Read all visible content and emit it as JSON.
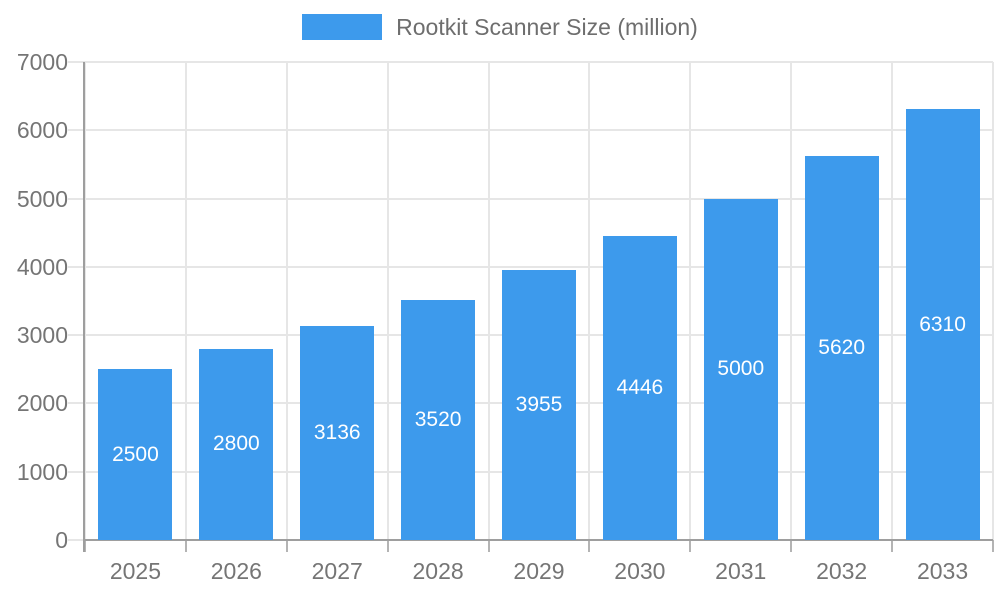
{
  "legend": {
    "label": "Rootkit Scanner Size (million)"
  },
  "chart_data": {
    "type": "bar",
    "title": "Rootkit Scanner Size (million)",
    "categories": [
      "2025",
      "2026",
      "2027",
      "2028",
      "2029",
      "2030",
      "2031",
      "2032",
      "2033"
    ],
    "series": [
      {
        "name": "Rootkit Scanner Size (million)",
        "values": [
          2500,
          2800,
          3136,
          3520,
          3955,
          4446,
          5000,
          5620,
          6310
        ]
      }
    ],
    "xlabel": "",
    "ylabel": "",
    "ylim": [
      0,
      7000
    ],
    "ytick_step": 1000,
    "grid": true,
    "legend_position": "top",
    "value_labels": "inside-center"
  },
  "colors": {
    "bar": "#3D9AEC",
    "value_label": "#ffffff",
    "gridline": "#e6e6e6",
    "axis_line": "#9e9e9e",
    "tick": "#b4b4b4",
    "axis_text": "#757575",
    "legend_text": "#6e6e6e",
    "background": "#ffffff"
  }
}
